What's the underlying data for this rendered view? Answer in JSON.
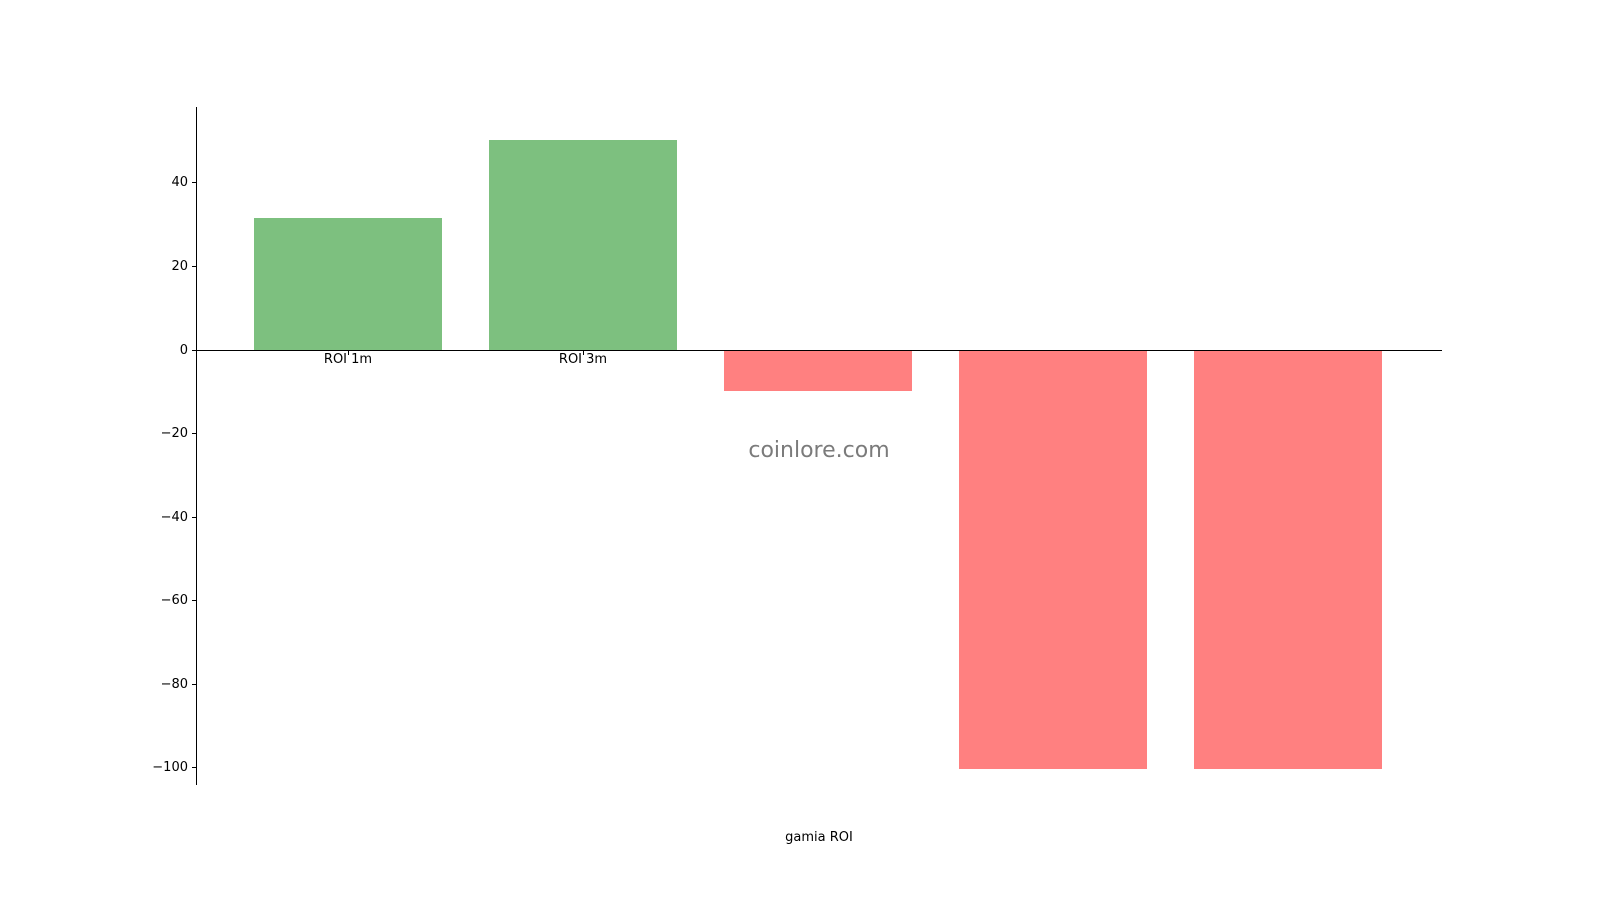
{
  "page": {
    "background_color": "#ffffff",
    "axis_color": "#000000",
    "tick_label_color": "#000000",
    "watermark_color": "#7b7b7b"
  },
  "chart_data": {
    "type": "bar",
    "title": "",
    "xlabel": "gamia ROI",
    "ylabel": "",
    "watermark": "coinlore.com",
    "categories": [
      "ROI 1m",
      "ROI 3m",
      "",
      "",
      ""
    ],
    "values": [
      31.6,
      50.2,
      -9.5,
      -100,
      -100
    ],
    "series": [
      {
        "name": "gamia ROI",
        "values": [
          31.6,
          50.2,
          -9.5,
          -100,
          -100
        ]
      }
    ],
    "bar_colors": [
      "#7DC07F",
      "#7DC07F",
      "#FF8080",
      "#FF8080",
      "#FF8080"
    ],
    "positive_color": "#7DC07F",
    "negative_color": "#FF8080",
    "ylim": [
      -104,
      58
    ],
    "yticks": [
      {
        "value": 40,
        "label": "40"
      },
      {
        "value": 20,
        "label": "20"
      },
      {
        "value": 0,
        "label": "0"
      },
      {
        "value": -20,
        "label": "−20"
      },
      {
        "value": -40,
        "label": "−40"
      },
      {
        "value": -60,
        "label": "−60"
      },
      {
        "value": -80,
        "label": "−80"
      },
      {
        "value": -100,
        "label": "−100"
      }
    ],
    "grid": false,
    "legend_position": "none",
    "notes": "x tick labels for the three negative bars are hidden behind the bars"
  }
}
